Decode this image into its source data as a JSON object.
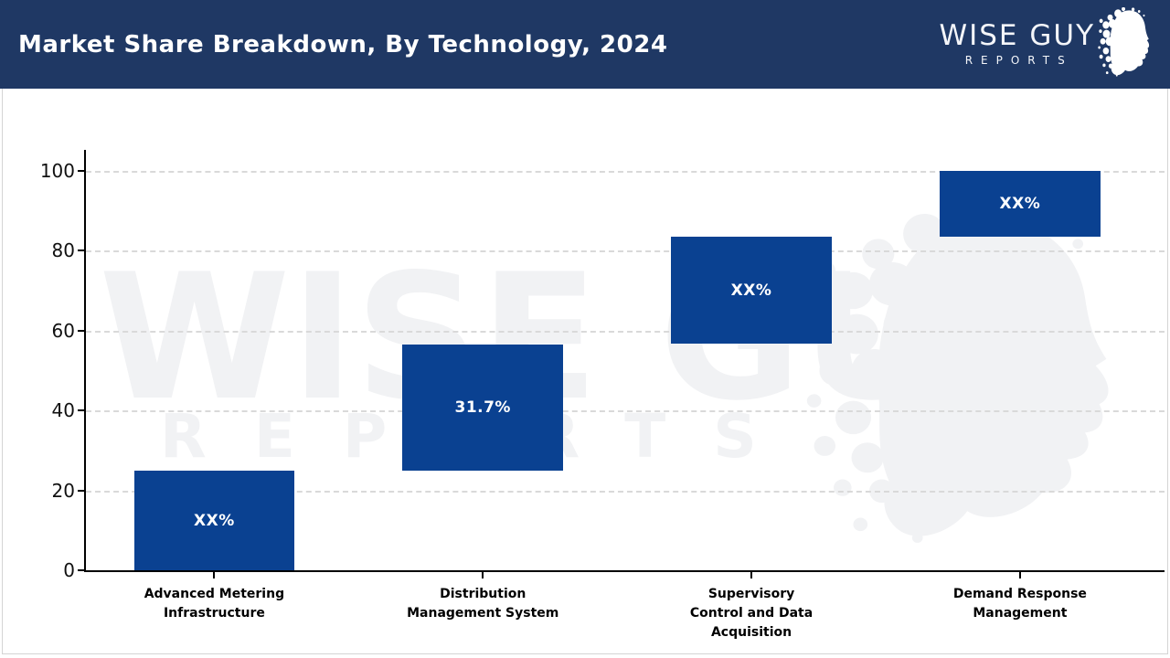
{
  "header": {
    "title": "Market Share Breakdown, By Technology, 2024",
    "logo": {
      "name": "WISE GUY",
      "subname": "REPORTS"
    }
  },
  "watermark": {
    "line1": "WISE GUY",
    "line2": "REPORTS"
  },
  "colors": {
    "header_bg": "#1f3864",
    "bar": "#0a4191",
    "grid": "#d9d9d9",
    "axis": "#000000",
    "watermark": "#f1f2f4",
    "page_border": "#d4d4d4",
    "title_text": "#ffffff",
    "bar_label_text": "#ffffff"
  },
  "chart_data": {
    "type": "bar",
    "subtype": "floating-waterfall",
    "title": "Market Share Breakdown, By Technology, 2024",
    "unit": "%",
    "categories": [
      "Advanced Metering\nInfrastructure",
      "Distribution\nManagement System",
      "Supervisory\nControl and Data\nAcquisition",
      "Demand Response\nManagement"
    ],
    "bars": [
      {
        "start": 0,
        "end": 24.9,
        "label": "XX%"
      },
      {
        "start": 24.9,
        "end": 56.6,
        "label": "31.7%"
      },
      {
        "start": 56.6,
        "end": 83.5,
        "label": "XX%"
      },
      {
        "start": 83.5,
        "end": 100,
        "label": "XX%"
      }
    ],
    "yticks": [
      0,
      20,
      40,
      60,
      80,
      100
    ],
    "ylim": [
      0,
      105.2
    ],
    "xlabel": "",
    "ylabel": "",
    "grid": "horizontal-dashed",
    "legend": "none",
    "bar_centers_frac": [
      0.119,
      0.368,
      0.617,
      0.866
    ],
    "bar_width_frac": 0.149
  }
}
